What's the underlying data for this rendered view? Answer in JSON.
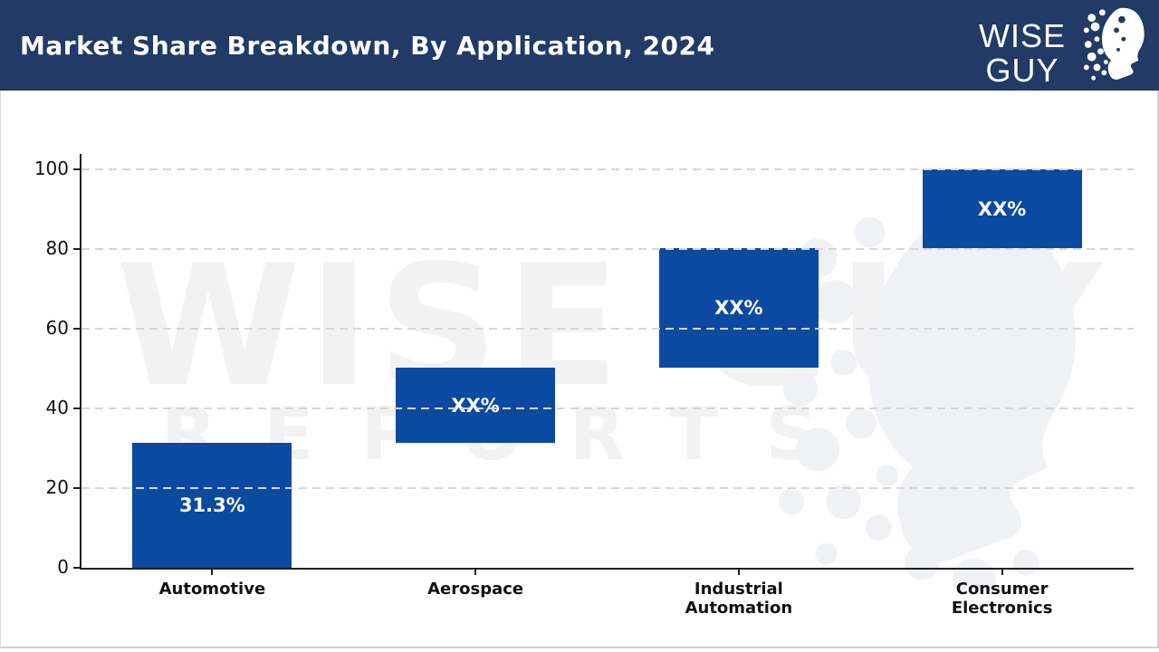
{
  "header": {
    "title": "Market Share Breakdown, By Application, 2024",
    "bg_color": "#213A66",
    "logo": {
      "line1": "WISE GUY",
      "line2": "REPORTS"
    }
  },
  "watermark": {
    "line1": "WISE GUY",
    "line2": "REPORTS"
  },
  "chart_data": {
    "type": "bar",
    "subtype": "waterfall",
    "title": "Market Share Breakdown, By Application, 2024",
    "categories": [
      "Automotive",
      "Aerospace",
      "Industrial Automation",
      "Consumer Electronics"
    ],
    "category_label_lines": [
      [
        "Automotive"
      ],
      [
        "Aerospace"
      ],
      [
        "Industrial",
        "Automation"
      ],
      [
        "Consumer",
        "Electronics"
      ]
    ],
    "segments": [
      {
        "category": "Automotive",
        "start": 0,
        "end": 31.3,
        "label": "31.3%"
      },
      {
        "category": "Aerospace",
        "start": 31.3,
        "end": 50.2,
        "label": "XX%"
      },
      {
        "category": "Industrial Automation",
        "start": 50.2,
        "end": 80.2,
        "label": "XX%"
      },
      {
        "category": "Consumer Electronics",
        "start": 80.2,
        "end": 100,
        "label": "XX%"
      }
    ],
    "xlabel": "",
    "ylabel": "",
    "ylim": [
      0,
      105
    ],
    "yticks": [
      0,
      20,
      40,
      60,
      80,
      100
    ],
    "grid": "horizontal-dashed",
    "legend": "none",
    "bar_color": "#0B4AA1",
    "bar_label_color": "#ffffff",
    "axis_color": "#1f1f1f",
    "gridline_color": "#d6d6d6"
  }
}
